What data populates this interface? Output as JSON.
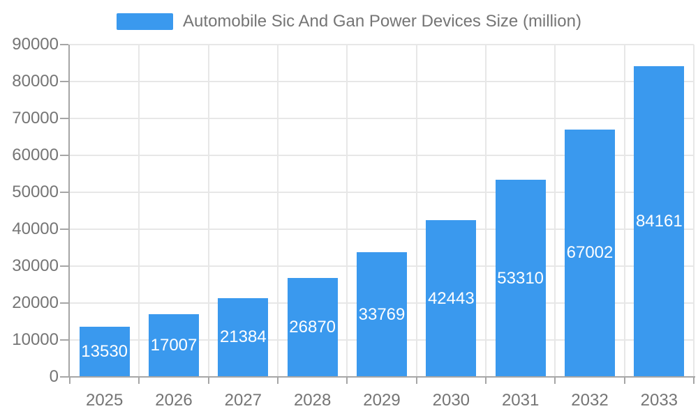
{
  "chart_data": {
    "type": "bar",
    "title": "Automobile Sic And Gan Power Devices Size (million)",
    "legend_position": "top",
    "categories": [
      "2025",
      "2026",
      "2027",
      "2028",
      "2029",
      "2030",
      "2031",
      "2032",
      "2033"
    ],
    "values": [
      13530,
      17007,
      21384,
      26870,
      33769,
      42443,
      53310,
      67002,
      84161
    ],
    "xlabel": "",
    "ylabel": "",
    "ylim": [
      0,
      90000
    ],
    "yticks": [
      0,
      10000,
      20000,
      30000,
      40000,
      50000,
      60000,
      70000,
      80000,
      90000
    ],
    "grid": true,
    "bar_color": "#3a99ee",
    "value_label_color": "#ffffff",
    "axis_text_color": "#757575",
    "grid_color": "#e7e7e7",
    "axis_line_color": "#a6a6a6",
    "background_color": "#ffffff"
  }
}
